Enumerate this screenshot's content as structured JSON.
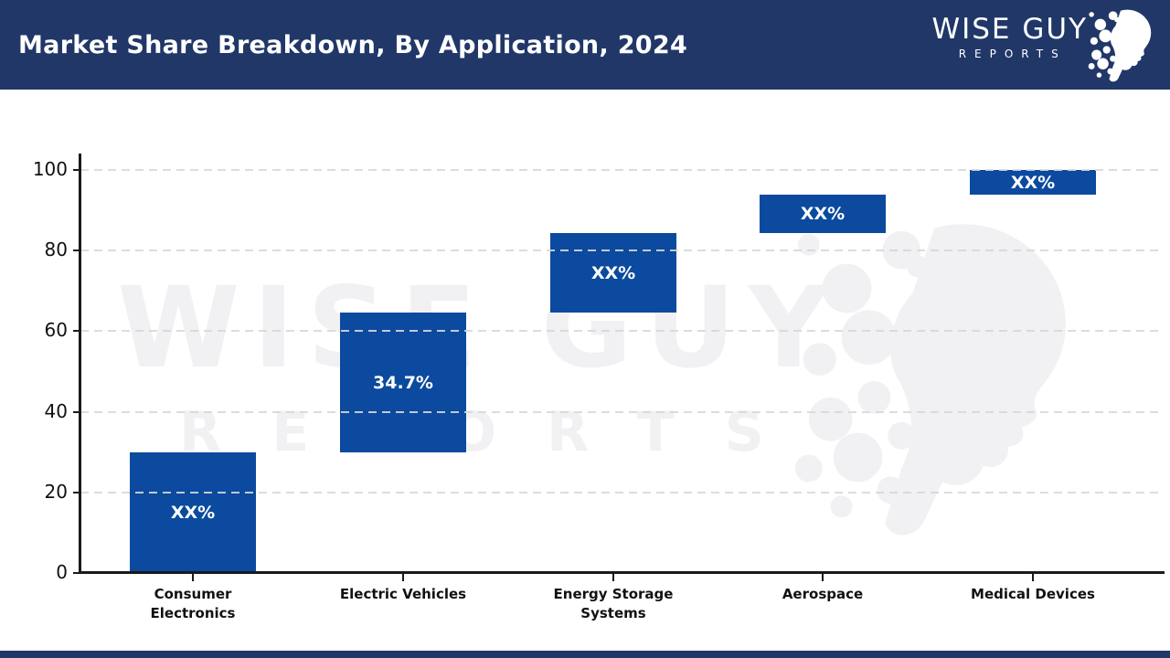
{
  "header": {
    "title": "Market Share Breakdown, By Application, 2024",
    "logo": {
      "line1": "WISE GUY",
      "line2": "REPORTS"
    }
  },
  "watermark": {
    "line1": "WISE GUY",
    "line2": "REPORTS"
  },
  "icons": {
    "logo_head": "dotted-head-profile-icon",
    "watermark_head": "dotted-head-profile-icon"
  },
  "colors": {
    "header_bg": "#203768",
    "footer_bg": "#203768",
    "bar_blue": "#0b4a9e",
    "bar_label_text": "#ffffff",
    "grid_gray": "#d8d8d8",
    "axis_black": "#1a1a1a",
    "watermark_gray": "#f1f1f4",
    "title_text": "#ffffff"
  },
  "chart_data": {
    "type": "bar",
    "subtype": "waterfall-floating",
    "title": "Market Share Breakdown, By Application, 2024",
    "xlabel": "",
    "ylabel": "",
    "categories": [
      "Consumer Electronics",
      "Electric Vehicles",
      "Energy Storage Systems",
      "Aerospace",
      "Medical Devices"
    ],
    "bars": [
      {
        "category": "Consumer Electronics",
        "start": 0,
        "end": 29.9,
        "height": 29.9,
        "label": "XX%"
      },
      {
        "category": "Electric Vehicles",
        "start": 29.9,
        "end": 64.6,
        "height": 34.7,
        "label": "34.7%"
      },
      {
        "category": "Energy Storage Systems",
        "start": 64.6,
        "end": 84.3,
        "height": 19.7,
        "label": "XX%"
      },
      {
        "category": "Aerospace",
        "start": 84.3,
        "end": 93.8,
        "height": 9.5,
        "label": "XX%"
      },
      {
        "category": "Medical Devices",
        "start": 93.8,
        "end": 100,
        "height": 6.2,
        "label": "XX%"
      }
    ],
    "yticks": [
      0,
      20,
      40,
      60,
      80,
      100
    ],
    "ylim": [
      0,
      104
    ],
    "grid": "horizontal-dashed-over-bars",
    "legend": "none"
  }
}
